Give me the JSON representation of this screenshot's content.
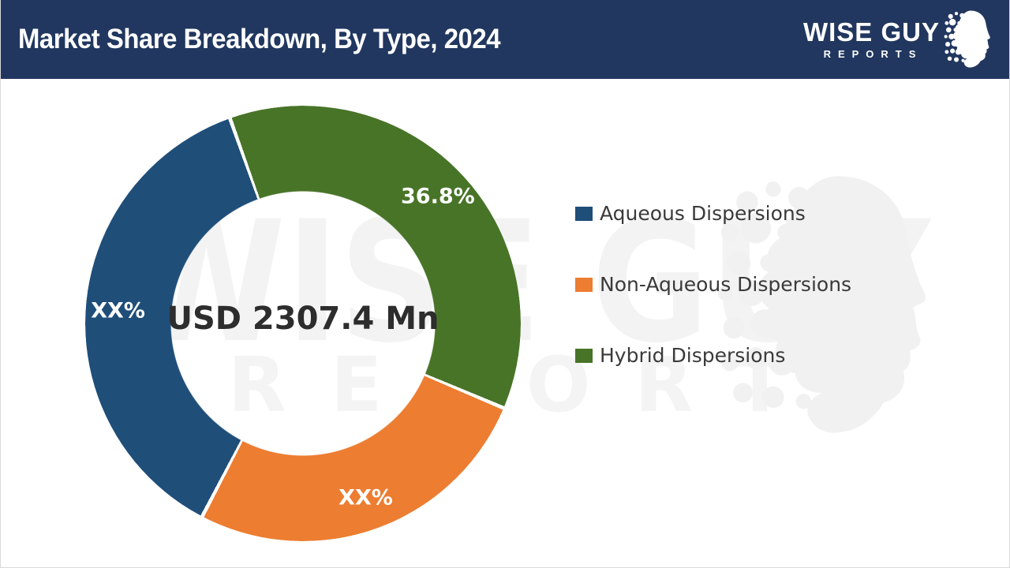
{
  "header": {
    "title": "Market Share Breakdown, By Type, 2024",
    "bg_color": "#21375f",
    "logo": {
      "line1": "WISE GUY",
      "line2": "REPORTS"
    }
  },
  "watermark": {
    "line1": "WISE GUY",
    "line2": "REPORTS"
  },
  "chart_data": {
    "type": "pie",
    "subtype": "donut",
    "title": "Market Share Breakdown, By Type, 2024",
    "center_label": "USD 2307.4 Mn",
    "units": "percent of market share",
    "start_angle_deg": -19.6,
    "first_slice_direction": "counterclockwise",
    "donut_hole_ratio": 0.61,
    "legend_position": "right",
    "slices": [
      {
        "label": "Aqueous Dispersions",
        "value_pct_est": 36.9,
        "data_label": "XX%",
        "color": "#1f4e79"
      },
      {
        "label": "Non-Aqueous Dispersions",
        "value_pct_est": 26.3,
        "data_label": "XX%",
        "color": "#ed7d31"
      },
      {
        "label": "Hybrid Dispersions",
        "value_pct_est": 36.8,
        "data_label": "36.8%",
        "color": "#487428"
      }
    ]
  }
}
